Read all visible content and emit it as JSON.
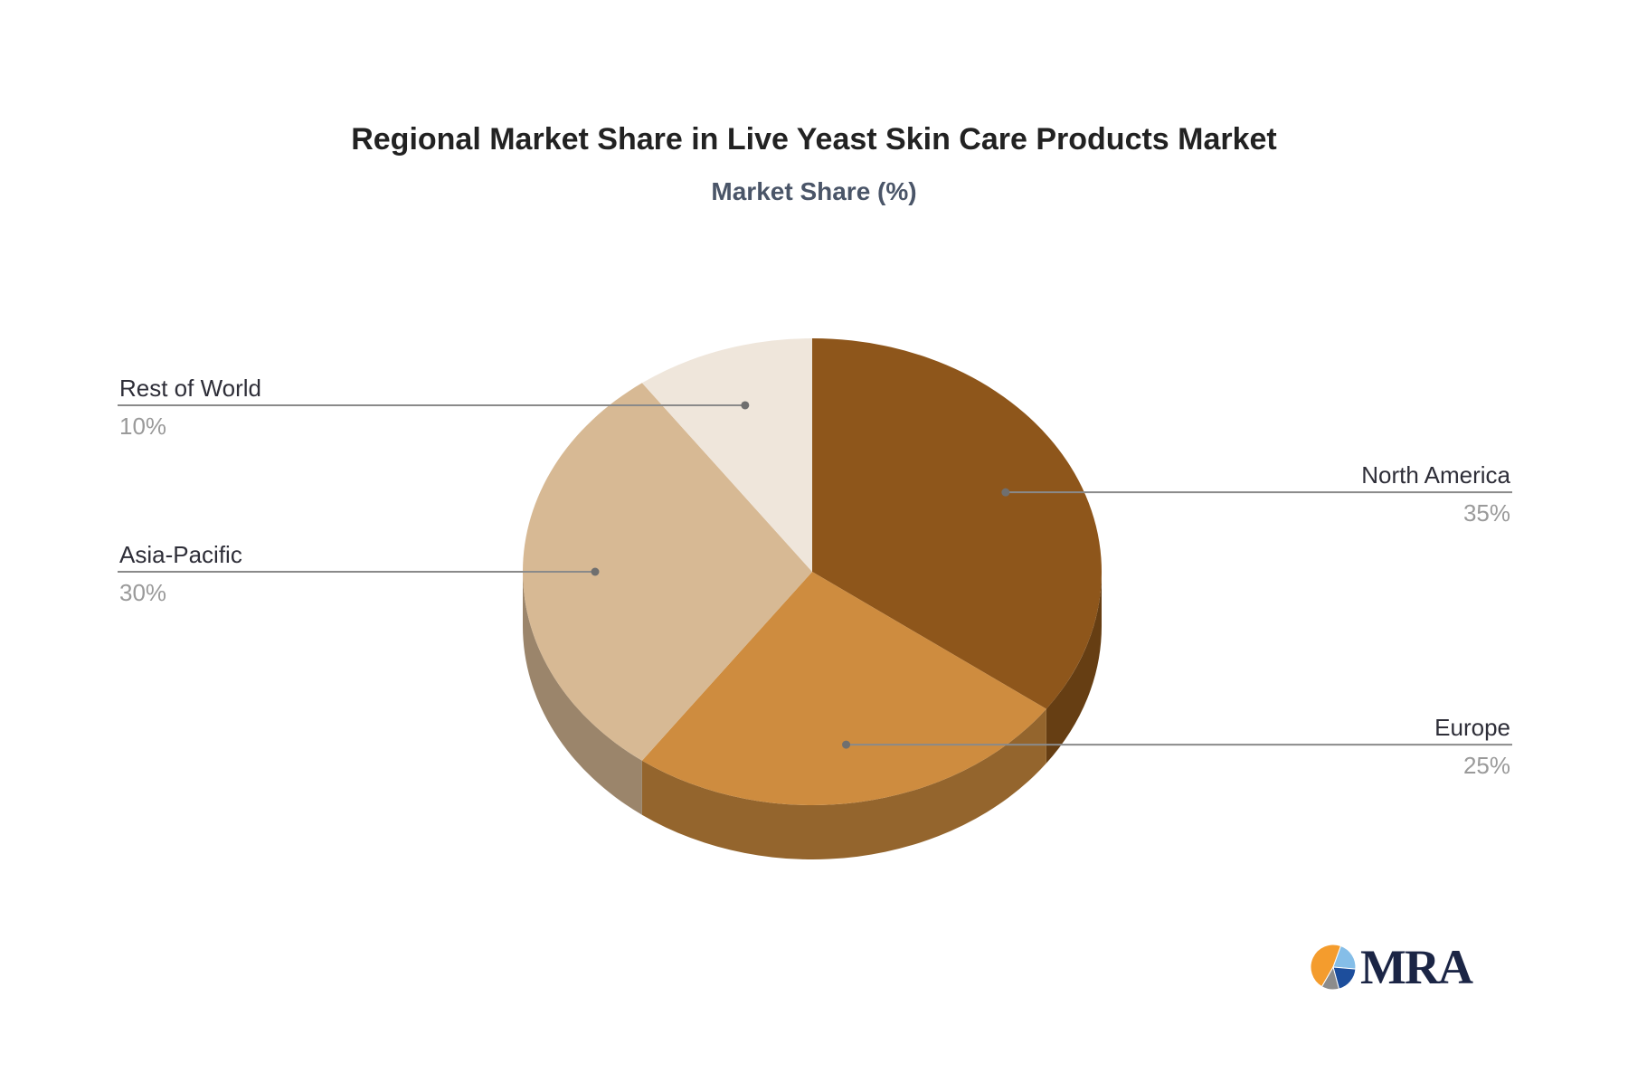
{
  "title": "Regional Market Share in Live Yeast Skin Care Products Market",
  "subtitle": "Market Share (%)",
  "chart_data": {
    "type": "pie",
    "title": "Regional Market Share in Live Yeast Skin Care Products Market",
    "subtitle": "Market Share (%)",
    "unit": "%",
    "style": "3d",
    "start_angle_deg": 0,
    "direction": "clockwise",
    "legend": "none",
    "label_style": "outside-connector",
    "categories": [
      "North America",
      "Europe",
      "Asia-Pacific",
      "Rest of World"
    ],
    "values": [
      35,
      25,
      30,
      10
    ],
    "series": [
      {
        "name": "North America",
        "value": 35,
        "pct_label": "35%",
        "color": "#8E561B"
      },
      {
        "name": "Europe",
        "value": 25,
        "pct_label": "25%",
        "color": "#CE8C3F"
      },
      {
        "name": "Asia-Pacific",
        "value": 30,
        "pct_label": "30%",
        "color": "#D7B994"
      },
      {
        "name": "Rest of World",
        "value": 10,
        "pct_label": "10%",
        "color": "#EFE6DB"
      }
    ],
    "colors": {
      "label_name": "#2e2e38",
      "label_pct": "#9a9a9a",
      "connector_line": "#8a8a8a",
      "connector_dot": "#6f6f6f",
      "background": "#ffffff"
    }
  },
  "logo": {
    "text": "MRA",
    "text_color": "#1b2545",
    "wedges": [
      {
        "from": 210,
        "to": 380,
        "color": "#F49C2D"
      },
      {
        "from": 20,
        "to": 95,
        "color": "#85BEE8"
      },
      {
        "from": 95,
        "to": 165,
        "color": "#1D4E9C"
      },
      {
        "from": 165,
        "to": 210,
        "color": "#8C8C8C"
      }
    ]
  }
}
